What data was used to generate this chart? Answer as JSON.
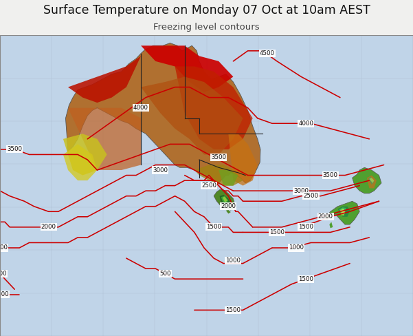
{
  "title": "Surface Temperature on Monday 07 Oct at 10am AEST",
  "subtitle": "Freezing level contours",
  "title_fontsize": 12.5,
  "subtitle_fontsize": 9.5,
  "title_color": "#111111",
  "ocean_color": "#c0d4e8",
  "header_bg": "#f0f0ee",
  "fig_width": 6.01,
  "fig_height": 4.88,
  "dpi": 100,
  "lon_min": 100,
  "lon_max": 185,
  "lat_min": -68,
  "lat_max": -10
}
